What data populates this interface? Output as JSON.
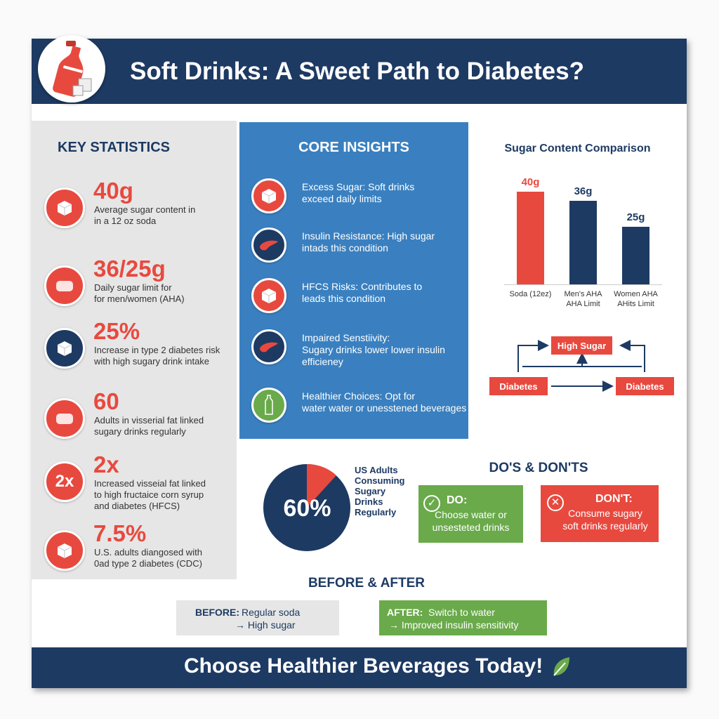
{
  "header": {
    "title": "Soft Drinks: A Sweet Path to Diabetes?",
    "logo_icon": "soda-bottle-icon"
  },
  "key_statistics": {
    "title": "KEY STATISTICS",
    "items": [
      {
        "value": "40g",
        "desc1": "Average sugar content in",
        "desc2": "in a 12 oz soda",
        "icon": "sugar-cube-icon",
        "color": "red"
      },
      {
        "value": "36/25g",
        "desc1": "Daily sugar limit for",
        "desc2": "for men/women (AHA)",
        "icon": "body-icon",
        "color": "red"
      },
      {
        "value": "25%",
        "desc1": "Increase in type 2 diabetes risk",
        "desc2": "with high sugary drink intake",
        "icon": "sugar-cube-icon",
        "color": "navy"
      },
      {
        "value": "60",
        "desc1": "Adults in visserial fat linked",
        "desc2": "sugary drinks regularly",
        "icon": "body-icon",
        "color": "red"
      },
      {
        "value": "2x",
        "desc1": "Increased visseial fat linked",
        "desc2": "to high fructaice corn syrup",
        "desc3": "and diabetes (HFCS)",
        "icon_text": "2x",
        "color": "red"
      },
      {
        "value": "7.5%",
        "desc1": "U.S. adults diangosed with",
        "desc2": "0ad type 2 diabetes (CDC)",
        "icon": "sugar-cube-icon",
        "color": "red"
      }
    ]
  },
  "core_insights": {
    "title": "CORE INSIGHTS",
    "items": [
      {
        "line1": "Excess Sugar: Soft drinks",
        "line2": "exceed daily limits",
        "icon": "sugar-cube-icon",
        "color": "red"
      },
      {
        "line1": "Insulin Resistance: High sugar",
        "line2": "intads this condition",
        "icon": "pancreas-icon",
        "color": "navy"
      },
      {
        "line1": "HFCS Risks: Contributes to",
        "line2": "leads this condition",
        "icon": "sugar-cube-icon",
        "color": "red"
      },
      {
        "line1": "Impaired Senstiivity:",
        "line2": "Sugary drinks lower lower insulin",
        "line3": "efficieney",
        "icon": "pancreas-icon",
        "color": "navy"
      },
      {
        "line1": "Healthier Choices: Opt for",
        "line2": "water water or unesstened beverages",
        "icon": "water-bottle-icon",
        "color": "green"
      }
    ]
  },
  "chart_data": {
    "type": "bar",
    "title": "Sugar Content Comparison",
    "categories": [
      [
        "Soda (12ez)",
        ""
      ],
      [
        "Men's AHA",
        "AHA Limit"
      ],
      [
        "Women AHA",
        "AHits Limit"
      ]
    ],
    "values": [
      40,
      36,
      25
    ],
    "data_labels": [
      "40g",
      "36g",
      "25g"
    ],
    "colors": [
      "#e8493f",
      "#1d3a63",
      "#1d3a63"
    ],
    "unit": "g"
  },
  "flow": {
    "top": "High Sugar",
    "left": "Diabetes",
    "right": "Diabetes"
  },
  "pie": {
    "value_label": "60%",
    "caption": [
      "US Adults",
      "Consuming",
      "Sugary",
      "Drinks",
      "Regularly"
    ],
    "colors": {
      "main": "#1d3a63",
      "slice": "#e8493f"
    }
  },
  "dos_donts": {
    "title": "DO'S & DON'TS",
    "do": {
      "label": "DO:",
      "line1": "Choose water or",
      "line2": "unsesteted drinks"
    },
    "dont": {
      "label": "DON'T:",
      "line1": "Consume sugary",
      "line2": "soft drinks regularly"
    }
  },
  "before_after": {
    "title": "BEFORE & AFTER",
    "before": {
      "label": "BEFORE:",
      "line1": "Regular soda",
      "line2": "→ High sugar"
    },
    "after": {
      "label": "AFTER:",
      "line1": "Switch to water",
      "line2": "→ Improved insulin sensitivity"
    }
  },
  "footer": {
    "text": "Choose Healthier Beverages Today!",
    "icon": "leaf-icon"
  },
  "colors": {
    "navy": "#1d3a63",
    "red": "#e8493f",
    "blue": "#3a80c0",
    "green": "#6aaa4b",
    "gray": "#e6e6e6"
  }
}
